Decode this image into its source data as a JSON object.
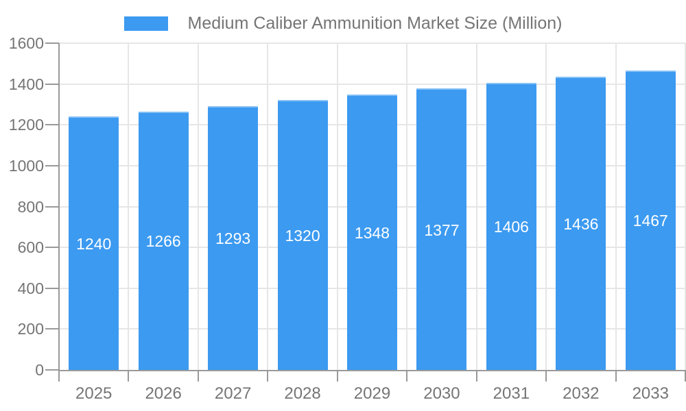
{
  "chart_data": {
    "type": "bar",
    "title": "",
    "legend_label": "Medium Caliber Ammunition Market Size (Million)",
    "categories": [
      "2025",
      "2026",
      "2027",
      "2028",
      "2029",
      "2030",
      "2031",
      "2032",
      "2033"
    ],
    "values": [
      1240,
      1266,
      1293,
      1320,
      1348,
      1377,
      1406,
      1436,
      1467
    ],
    "xlabel": "",
    "ylabel": "",
    "ylim": [
      0,
      1600
    ],
    "yticks": [
      0,
      200,
      400,
      600,
      800,
      1000,
      1200,
      1400,
      1600
    ],
    "grid": true,
    "legend_position": "top",
    "bar_labels_inside_middle": true,
    "colors": {
      "bar": "#3C9AF0",
      "bar_top_edge": "#85C0F5",
      "bar_label": "#FFFFFF",
      "axis": "#999999",
      "grid": "#E6E6E6",
      "tick_text": "#757575",
      "legend_text": "#757575",
      "background": "#FFFFFF"
    }
  }
}
